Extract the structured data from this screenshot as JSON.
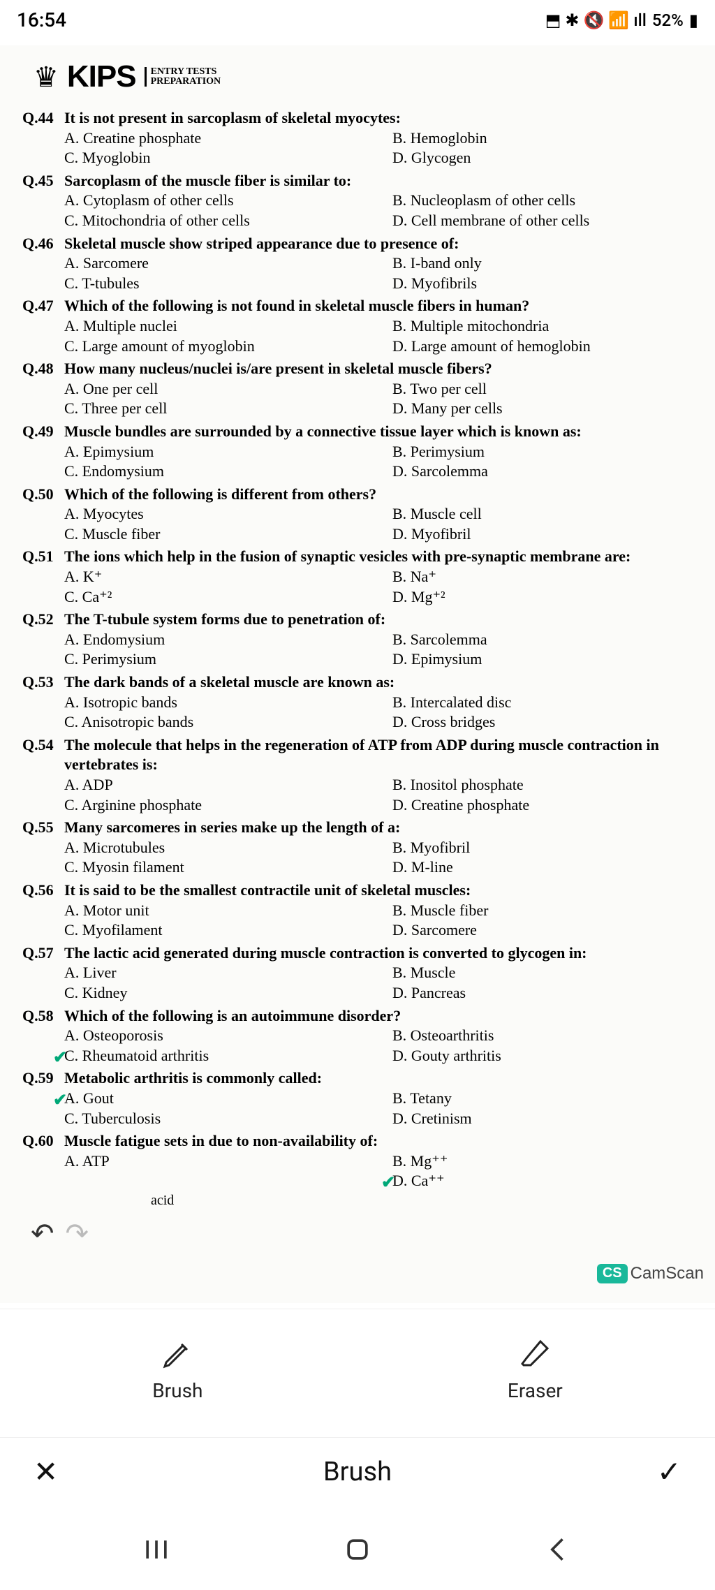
{
  "status": {
    "time": "16:54",
    "battery": "52%",
    "icons": [
      "⬒",
      "✱",
      "✕",
      "📶",
      "⏶"
    ]
  },
  "doc_header": {
    "logo_main": "KIPS",
    "logo_line1": "ENTRY TESTS",
    "logo_line2": "PREPARATION"
  },
  "questions": [
    {
      "num": "Q.44",
      "text": "It is not present in sarcoplasm of skeletal myocytes:",
      "opts": [
        "A. Creatine phosphate",
        "B. Hemoglobin",
        "C. Myoglobin",
        "D. Glycogen"
      ]
    },
    {
      "num": "Q.45",
      "text": "Sarcoplasm of the muscle fiber is similar to:",
      "opts": [
        "A. Cytoplasm of other cells",
        "B. Nucleoplasm of other cells",
        "C. Mitochondria of other cells",
        "D. Cell membrane of other cells"
      ]
    },
    {
      "num": "Q.46",
      "text": "Skeletal muscle show striped appearance due to presence of:",
      "opts": [
        "A. Sarcomere",
        "B. I-band only",
        "C. T-tubules",
        "D. Myofibrils"
      ]
    },
    {
      "num": "Q.47",
      "text": "Which of the following is not found in skeletal muscle fibers in human?",
      "opts": [
        "A. Multiple nuclei",
        "B. Multiple mitochondria",
        "C. Large amount of myoglobin",
        "D. Large amount of hemoglobin"
      ]
    },
    {
      "num": "Q.48",
      "text": "How many nucleus/nuclei is/are present in skeletal muscle fibers?",
      "opts": [
        "A. One per cell",
        "B. Two per cell",
        "C. Three per cell",
        "D. Many per cells"
      ]
    },
    {
      "num": "Q.49",
      "text": "Muscle bundles are surrounded by a connective tissue layer which is known as:",
      "opts": [
        "A. Epimysium",
        "B. Perimysium",
        "C. Endomysium",
        "D. Sarcolemma"
      ]
    },
    {
      "num": "Q.50",
      "text": "Which of the following is different from others?",
      "opts": [
        "A. Myocytes",
        "B. Muscle cell",
        "C. Muscle fiber",
        "D. Myofibril"
      ]
    },
    {
      "num": "Q.51",
      "text": "The ions which help in the fusion of synaptic vesicles with pre-synaptic membrane are:",
      "opts": [
        "A. K⁺",
        "B. Na⁺",
        "C. Ca⁺²",
        "D. Mg⁺²"
      ]
    },
    {
      "num": "Q.52",
      "text": "The T-tubule system forms due to penetration of:",
      "opts": [
        "A. Endomysium",
        "B. Sarcolemma",
        "C. Perimysium",
        "D. Epimysium"
      ]
    },
    {
      "num": "Q.53",
      "text": "The dark bands of a skeletal muscle are known as:",
      "opts": [
        "A. Isotropic bands",
        "B. Intercalated disc",
        "C. Anisotropic bands",
        "D. Cross bridges"
      ]
    },
    {
      "num": "Q.54",
      "text": "The molecule that helps in the regeneration of ATP from ADP during muscle contraction in vertebrates is:",
      "opts": [
        "A. ADP",
        "B. Inositol phosphate",
        "C. Arginine phosphate",
        "D. Creatine phosphate"
      ]
    },
    {
      "num": "Q.55",
      "text": "Many sarcomeres in series make up the length of a:",
      "opts": [
        "A. Microtubules",
        "B. Myofibril",
        "C. Myosin filament",
        "D. M-line"
      ]
    },
    {
      "num": "Q.56",
      "text": "It is said to be the smallest contractile unit of skeletal muscles:",
      "opts": [
        "A. Motor unit",
        "B. Muscle fiber",
        "C. Myofilament",
        "D. Sarcomere"
      ]
    },
    {
      "num": "Q.57",
      "text": "The lactic acid generated during muscle contraction is converted to glycogen in:",
      "opts": [
        "A. Liver",
        "B. Muscle",
        "C. Kidney",
        "D. Pancreas"
      ]
    },
    {
      "num": "Q.58",
      "text": "Which of the following is an autoimmune disorder?",
      "opts": [
        "A. Osteoporosis",
        "B. Osteoarthritis",
        "C. Rheumatoid arthritis",
        "D. Gouty arthritis"
      ],
      "checked": [
        2
      ]
    },
    {
      "num": "Q.59",
      "text": "Metabolic arthritis is commonly called:",
      "opts": [
        "A. Gout",
        "B. Tetany",
        "C. Tuberculosis",
        "D. Cretinism"
      ],
      "checked": [
        0
      ]
    },
    {
      "num": "Q.60",
      "text": "Muscle fatigue sets in due to non-availability of:",
      "opts": [
        "A. ATP",
        "B. Mg⁺⁺",
        "",
        "D. Ca⁺⁺"
      ],
      "checked": [
        3
      ]
    }
  ],
  "acid_label": "acid",
  "camscan": {
    "badge": "CS",
    "text": "CamScan"
  },
  "tools": {
    "brush": "Brush",
    "eraser": "Eraser"
  },
  "bottom": {
    "close": "✕",
    "title": "Brush",
    "confirm": "✓"
  }
}
